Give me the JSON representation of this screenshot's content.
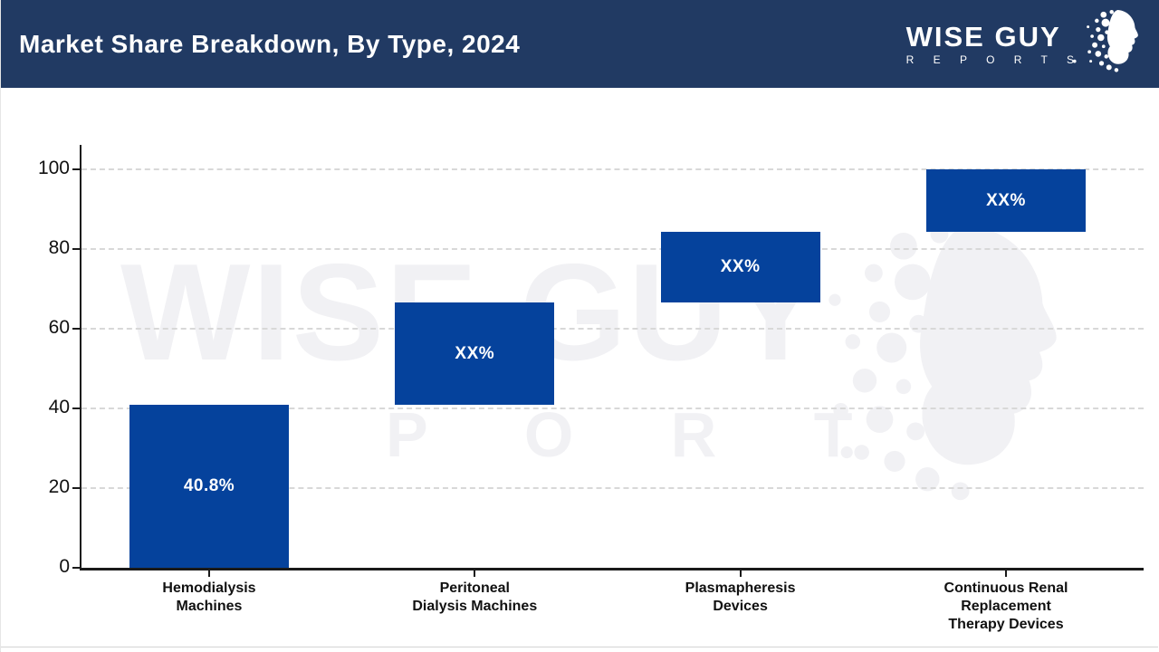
{
  "header": {
    "title": "Market Share Breakdown, By Type, 2024",
    "logo": {
      "line1": "WISE GUY",
      "line2": "R E P O R T S"
    }
  },
  "watermark": {
    "line1": "WISE GUY",
    "line2": "P O R T S"
  },
  "colors": {
    "banner": "#213a63",
    "bar": "#05429c",
    "bar_label": "#ffffff",
    "grid": "#d8d8d8",
    "axis": "#1a1a1a",
    "watermark": "#f1f1f4"
  },
  "chart_data": {
    "type": "bar",
    "subtype": "waterfall",
    "title": "Market Share Breakdown, By Type, 2024",
    "categories": [
      "Hemodialysis Machines",
      "Peritoneal Dialysis Machines",
      "Plasmapheresis Devices",
      "Continuous Renal Replacement Therapy Devices"
    ],
    "category_lines": [
      [
        "Hemodialysis",
        "Machines"
      ],
      [
        "Peritoneal",
        "Dialysis Machines"
      ],
      [
        "Plasmapheresis",
        "Devices"
      ],
      [
        "Continuous Renal",
        "Replacement",
        "Therapy Devices"
      ]
    ],
    "segments": [
      {
        "category": "Hemodialysis Machines",
        "start": 0,
        "end": 40.8,
        "text": "40.8%"
      },
      {
        "category": "Peritoneal Dialysis Machines",
        "start": 40.8,
        "end": 66.6,
        "text": "XX%"
      },
      {
        "category": "Plasmapheresis Devices",
        "start": 66.6,
        "end": 84.3,
        "text": "XX%"
      },
      {
        "category": "Continuous Renal Replacement Therapy Devices",
        "start": 84.3,
        "end": 100,
        "text": "XX%"
      }
    ],
    "yticks": [
      0,
      20,
      40,
      60,
      80,
      100
    ],
    "ylim": [
      0,
      106
    ],
    "grid": "dashed-horizontal",
    "legend": "none"
  }
}
